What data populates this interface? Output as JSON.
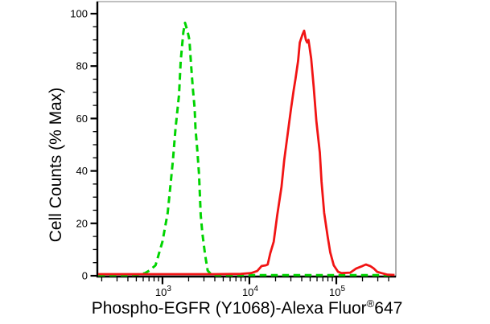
{
  "figure": {
    "background_color": "#ffffff",
    "y_axis_title": "Cell Counts (% Max)",
    "x_axis_title": {
      "prefix": "Phospho-EGFR (Y1068)-Alexa Fluor",
      "registered_symbol": "®",
      "suffix": "647"
    }
  },
  "chart_data": {
    "type": "line",
    "subtype": "flow-cytometry-histogram-overlay",
    "title": "",
    "xlabel": "Phospho-EGFR (Y1068)-Alexa Fluor®647",
    "ylabel": "Cell Counts (% Max)",
    "x_scale": "log10",
    "x_range_log10": [
      2.26,
      5.685
    ],
    "x_major_ticks": [
      {
        "base": "10",
        "exponent": "3"
      },
      {
        "base": "10",
        "exponent": "4"
      },
      {
        "base": "10",
        "exponent": "5"
      }
    ],
    "x_minor_ticks_rule": "log-spaced 2-9 per decade",
    "y_range": [
      0,
      100
    ],
    "y_major_ticks": [
      0,
      20,
      40,
      60,
      80,
      100
    ],
    "y_minor_tick_step": 5,
    "grid": false,
    "legend": "none",
    "axis_color": "#000000",
    "frame_color": "#9a9a9a",
    "series": [
      {
        "name": "green-dashed-curve",
        "style": "dashed",
        "color": "#00d400",
        "stroke_width": 3,
        "peak": {
          "x_value_approx": 1800,
          "y_percent": 96.5
        },
        "points_log10x_ypercent": [
          [
            2.26,
            0.2
          ],
          [
            2.6,
            0.2
          ],
          [
            2.72,
            0.5
          ],
          [
            2.8,
            1
          ],
          [
            2.85,
            2
          ],
          [
            2.92,
            4
          ],
          [
            3.0,
            13
          ],
          [
            3.06,
            24
          ],
          [
            3.09,
            34
          ],
          [
            3.12,
            44
          ],
          [
            3.15,
            56
          ],
          [
            3.19,
            69
          ],
          [
            3.21,
            82
          ],
          [
            3.24,
            93
          ],
          [
            3.26,
            96.5
          ],
          [
            3.29,
            93
          ],
          [
            3.31,
            90
          ],
          [
            3.33,
            80
          ],
          [
            3.35,
            71
          ],
          [
            3.37,
            64
          ],
          [
            3.38,
            56
          ],
          [
            3.4,
            48
          ],
          [
            3.42,
            39
          ],
          [
            3.43,
            31
          ],
          [
            3.44,
            23
          ],
          [
            3.46,
            16
          ],
          [
            3.49,
            8
          ],
          [
            3.52,
            2
          ],
          [
            3.56,
            0.5
          ],
          [
            3.62,
            0.2
          ],
          [
            4.0,
            0.2
          ],
          [
            4.5,
            0.2
          ],
          [
            5.0,
            0.2
          ],
          [
            5.4,
            0.2
          ],
          [
            5.67,
            0.2
          ]
        ]
      },
      {
        "name": "red-solid-curve",
        "style": "solid",
        "color": "#f11414",
        "stroke_width": 2.8,
        "peak": {
          "x_value_approx": 43000,
          "y_percent": 93.5
        },
        "points_log10x_ypercent": [
          [
            2.26,
            0.6
          ],
          [
            3.0,
            0.6
          ],
          [
            3.6,
            0.6
          ],
          [
            3.9,
            0.7
          ],
          [
            4.02,
            1
          ],
          [
            4.09,
            1.8
          ],
          [
            4.14,
            3.7
          ],
          [
            4.19,
            4.0
          ],
          [
            4.21,
            4.3
          ],
          [
            4.24,
            8.6
          ],
          [
            4.28,
            13
          ],
          [
            4.32,
            23
          ],
          [
            4.37,
            34
          ],
          [
            4.4,
            44
          ],
          [
            4.44,
            54
          ],
          [
            4.48,
            64
          ],
          [
            4.51,
            71
          ],
          [
            4.53,
            75
          ],
          [
            4.56,
            82
          ],
          [
            4.58,
            89
          ],
          [
            4.61,
            92
          ],
          [
            4.63,
            93.5
          ],
          [
            4.65,
            90
          ],
          [
            4.665,
            89
          ],
          [
            4.68,
            90
          ],
          [
            4.71,
            83
          ],
          [
            4.74,
            72
          ],
          [
            4.77,
            59
          ],
          [
            4.81,
            47
          ],
          [
            4.83,
            36
          ],
          [
            4.86,
            24
          ],
          [
            4.9,
            15
          ],
          [
            4.93,
            9
          ],
          [
            4.97,
            4
          ],
          [
            5.02,
            1.5
          ],
          [
            5.06,
            1
          ],
          [
            5.16,
            1.2
          ],
          [
            5.23,
            2.8
          ],
          [
            5.3,
            3.7
          ],
          [
            5.34,
            4.3
          ],
          [
            5.39,
            3.7
          ],
          [
            5.43,
            2.8
          ],
          [
            5.47,
            1.5
          ],
          [
            5.52,
            1
          ],
          [
            5.59,
            0.4
          ],
          [
            5.67,
            0.3
          ]
        ]
      }
    ]
  }
}
